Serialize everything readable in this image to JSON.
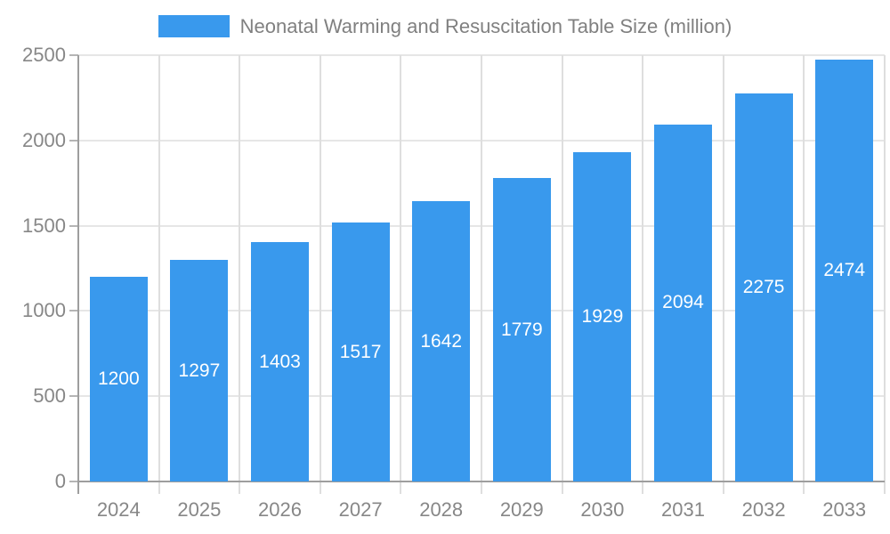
{
  "chart_data": {
    "type": "bar",
    "title": "Neonatal Warming and Resuscitation Table Size (million)",
    "categories": [
      "2024",
      "2025",
      "2026",
      "2027",
      "2028",
      "2029",
      "2030",
      "2031",
      "2032",
      "2033"
    ],
    "values": [
      1200,
      1297,
      1403,
      1517,
      1642,
      1779,
      1929,
      2094,
      2275,
      2474
    ],
    "xlabel": "",
    "ylabel": "",
    "ylim": [
      0,
      2500
    ],
    "yticks": [
      "0",
      "500",
      "1000",
      "1500",
      "2000",
      "2500"
    ],
    "grid": "on",
    "legend_position": "top-center",
    "value_labels": "inside-center",
    "colors": {
      "bar": "#3999ed",
      "value_label": "#ffffff",
      "axis_label": "#878787",
      "legend_text": "#808080",
      "grid_horizontal": "#e6e6e6",
      "grid_vertical": "#dedede",
      "axis_line": "#9e9e9e",
      "tick_mark": "#b5b5b5",
      "background": "#ffffff"
    }
  }
}
